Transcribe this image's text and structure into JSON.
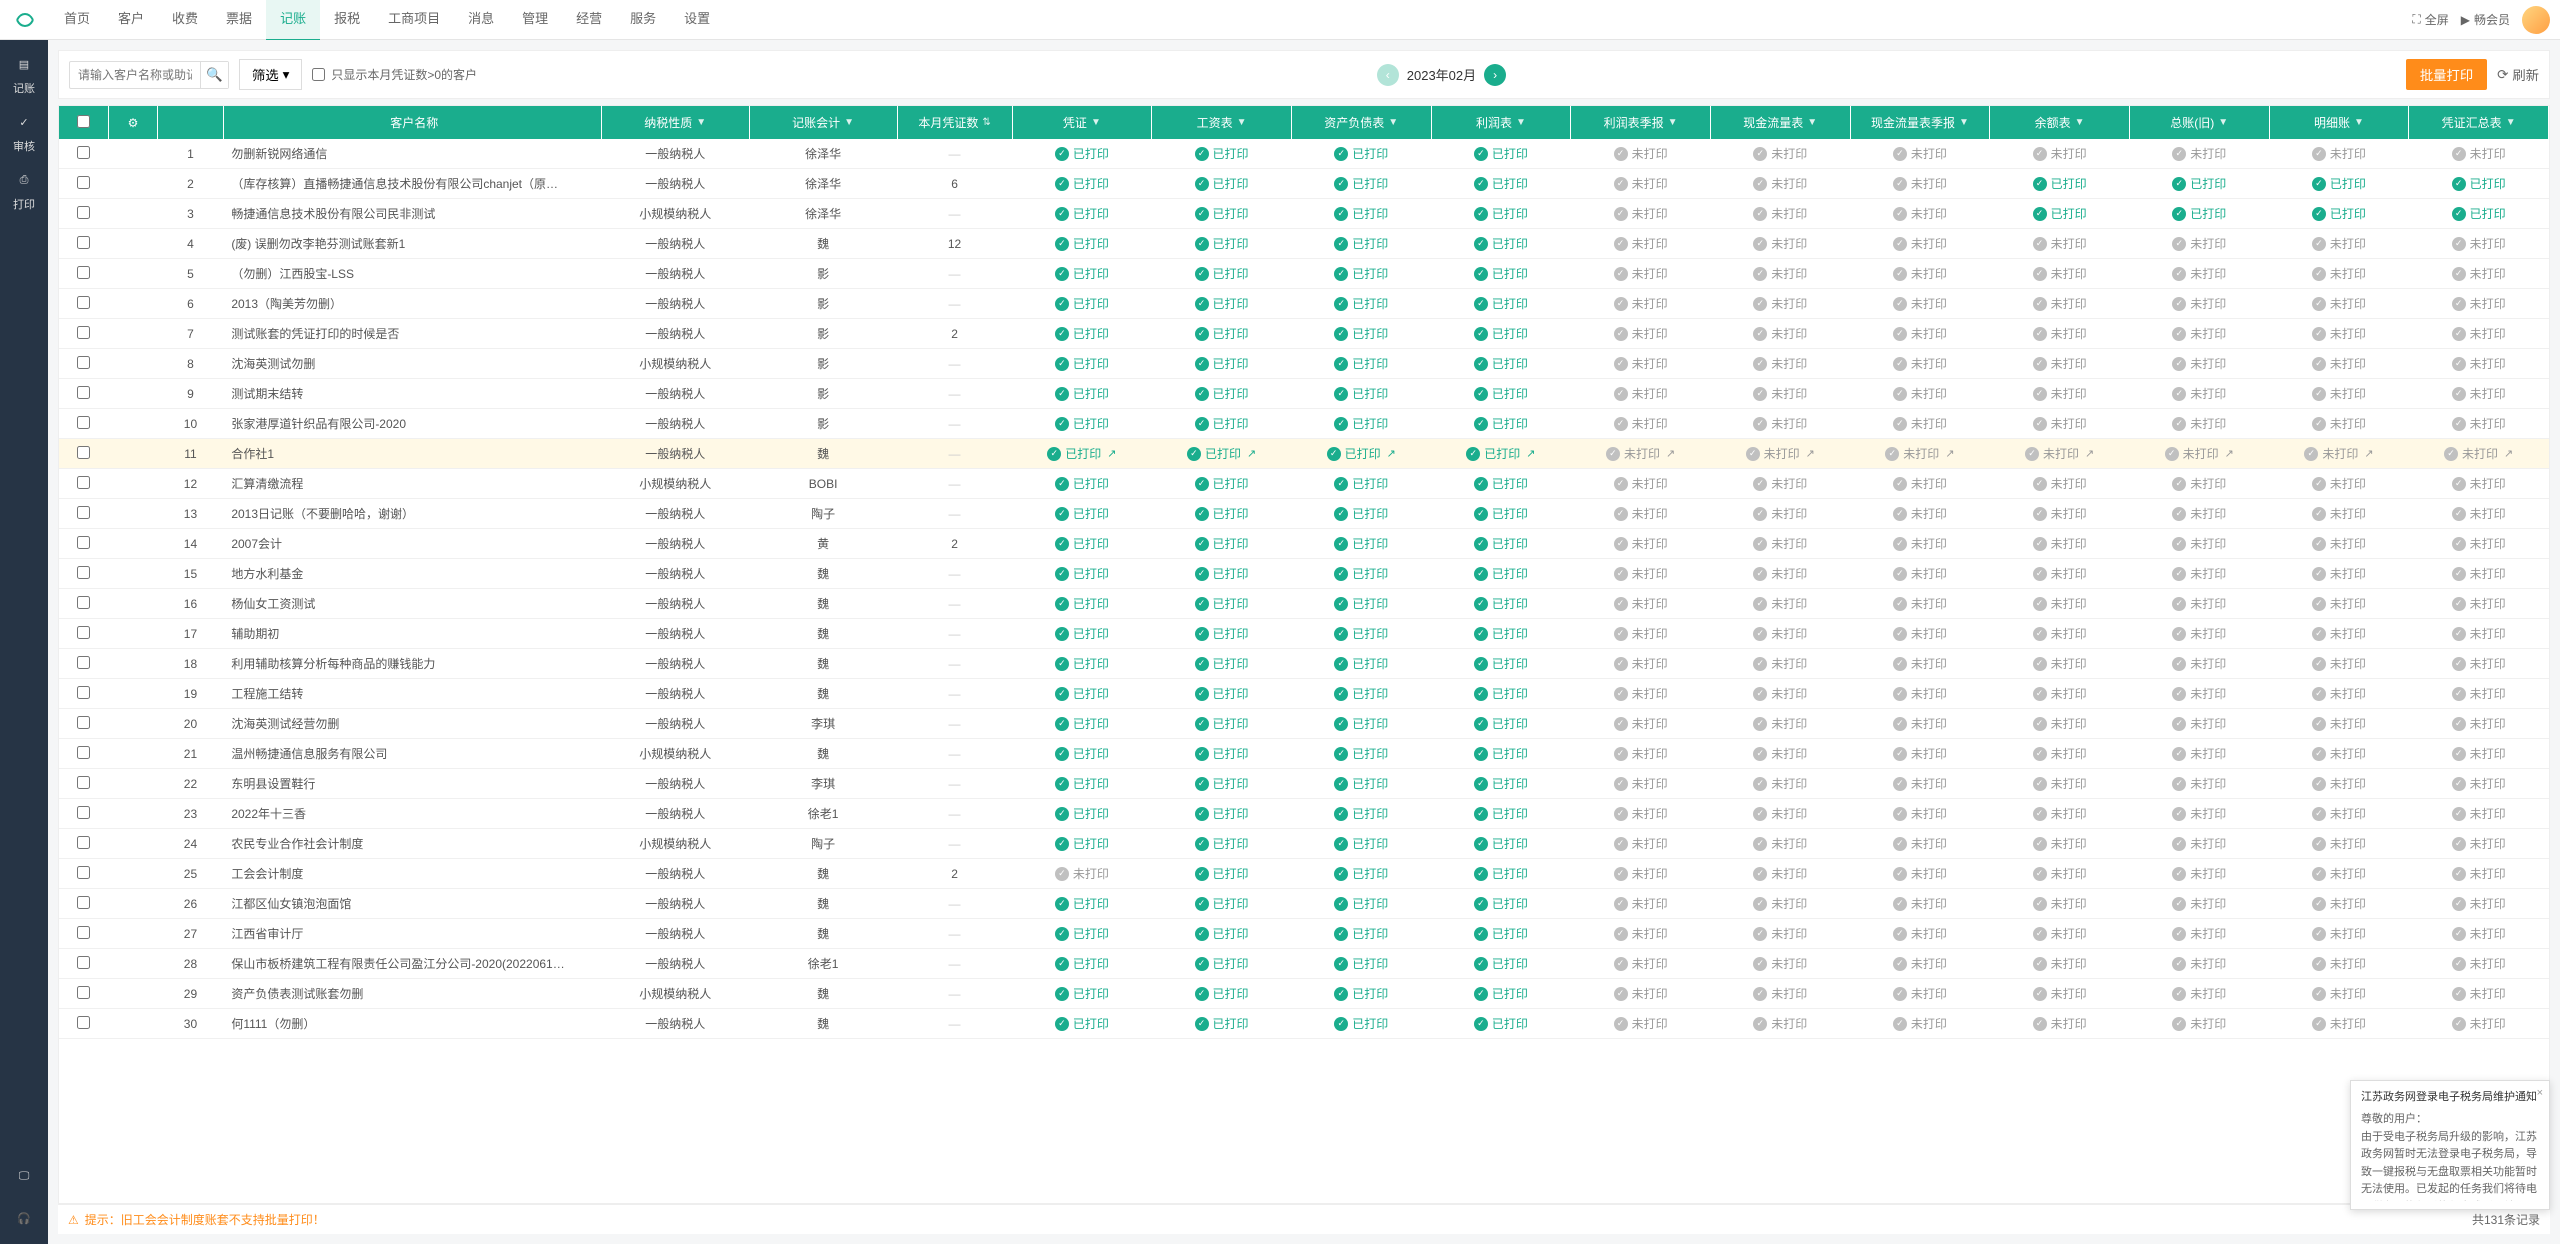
{
  "topnav": {
    "items": [
      "首页",
      "客户",
      "收费",
      "票据",
      "记账",
      "报税",
      "工商项目",
      "消息",
      "管理",
      "经营",
      "服务",
      "设置"
    ],
    "active_index": 4,
    "fullscreen": "全屏",
    "member": "畅会员"
  },
  "sidebar": {
    "items": [
      {
        "label": "记账",
        "icon": "book"
      },
      {
        "label": "审核",
        "icon": "check"
      },
      {
        "label": "打印",
        "icon": "printer"
      }
    ],
    "bottom": [
      {
        "label": "",
        "icon": "monitor"
      },
      {
        "label": "",
        "icon": "headset"
      }
    ]
  },
  "toolbar": {
    "search_placeholder": "请输入客户名称或助记码",
    "filter_label": "筛选",
    "only_show_label": "只显示本月凭证数>0的客户",
    "month": "2023年02月",
    "batch_print": "批量打印",
    "refresh": "刷新"
  },
  "table": {
    "headers": [
      "",
      "",
      "",
      "客户名称",
      "纳税性质",
      "记账会计",
      "本月凭证数",
      "凭证",
      "工资表",
      "资产负债表",
      "利润表",
      "利润表季报",
      "现金流量表",
      "现金流量表季报",
      "余额表",
      "总账(旧)",
      "明细账",
      "凭证汇总表"
    ],
    "col_keys": [
      "chk",
      "gear",
      "idx",
      "name",
      "tax",
      "acct",
      "vcnt",
      "c0",
      "c1",
      "c2",
      "c3",
      "c4",
      "c5",
      "c6",
      "c7",
      "c8",
      "c9",
      "c10"
    ],
    "print_cols": 11,
    "status_printed": "已打印",
    "status_unprinted": "未打印",
    "rows": [
      {
        "idx": 1,
        "name": "勿删新锐网络通信",
        "tax": "一般纳税人",
        "acct": "徐泽华",
        "vcnt": "",
        "p": [
          1,
          1,
          1,
          1,
          0,
          0,
          0,
          0,
          0,
          0,
          0
        ]
      },
      {
        "idx": 2,
        "name": "（库存核算）直播畅捷通信息技术股份有限公司chanjet（原…",
        "tax": "一般纳税人",
        "acct": "徐泽华",
        "vcnt": "6",
        "p": [
          1,
          1,
          1,
          1,
          0,
          0,
          0,
          1,
          1,
          1,
          1
        ]
      },
      {
        "idx": 3,
        "name": "畅捷通信息技术股份有限公司民非测试",
        "tax": "小规模纳税人",
        "acct": "徐泽华",
        "vcnt": "",
        "p": [
          1,
          1,
          1,
          1,
          0,
          0,
          0,
          1,
          1,
          1,
          1
        ]
      },
      {
        "idx": 4,
        "name": "(废) 误删勿改李艳芬测试账套新1",
        "tax": "一般纳税人",
        "acct": "魏",
        "vcnt": "12",
        "p": [
          1,
          1,
          1,
          1,
          0,
          0,
          0,
          0,
          0,
          0,
          0
        ]
      },
      {
        "idx": 5,
        "name": "（勿删）江西股宝-LSS",
        "tax": "一般纳税人",
        "acct": "影",
        "vcnt": "",
        "p": [
          1,
          1,
          1,
          1,
          0,
          0,
          0,
          0,
          0,
          0,
          0
        ]
      },
      {
        "idx": 6,
        "name": "2013（陶美芳勿删）",
        "tax": "一般纳税人",
        "acct": "影",
        "vcnt": "",
        "p": [
          1,
          1,
          1,
          1,
          0,
          0,
          0,
          0,
          0,
          0,
          0
        ]
      },
      {
        "idx": 7,
        "name": "测试账套的凭证打印的时候是否",
        "tax": "一般纳税人",
        "acct": "影",
        "vcnt": "2",
        "p": [
          1,
          1,
          1,
          1,
          0,
          0,
          0,
          0,
          0,
          0,
          0
        ]
      },
      {
        "idx": 8,
        "name": "沈海英测试勿删",
        "tax": "小规模纳税人",
        "acct": "影",
        "vcnt": "",
        "p": [
          1,
          1,
          1,
          1,
          0,
          0,
          0,
          0,
          0,
          0,
          0
        ]
      },
      {
        "idx": 9,
        "name": "测试期末结转",
        "tax": "一般纳税人",
        "acct": "影",
        "vcnt": "",
        "p": [
          1,
          1,
          1,
          1,
          0,
          0,
          0,
          0,
          0,
          0,
          0
        ]
      },
      {
        "idx": 10,
        "name": "张家港厚道针织品有限公司-2020",
        "tax": "一般纳税人",
        "acct": "影",
        "vcnt": "",
        "p": [
          1,
          1,
          1,
          1,
          0,
          0,
          0,
          0,
          0,
          0,
          0
        ]
      },
      {
        "idx": 11,
        "name": "合作社1",
        "tax": "一般纳税人",
        "acct": "魏",
        "vcnt": "",
        "p": [
          1,
          1,
          1,
          1,
          0,
          0,
          0,
          0,
          0,
          0,
          0
        ],
        "hl": true,
        "ext": true
      },
      {
        "idx": 12,
        "name": "汇算清缴流程",
        "tax": "小规模纳税人",
        "acct": "BOBI",
        "vcnt": "",
        "p": [
          1,
          1,
          1,
          1,
          0,
          0,
          0,
          0,
          0,
          0,
          0
        ]
      },
      {
        "idx": 13,
        "name": "2013日记账（不要删哈哈，谢谢）",
        "tax": "一般纳税人",
        "acct": "陶子",
        "vcnt": "",
        "p": [
          1,
          1,
          1,
          1,
          0,
          0,
          0,
          0,
          0,
          0,
          0
        ]
      },
      {
        "idx": 14,
        "name": "2007会计",
        "tax": "一般纳税人",
        "acct": "黄",
        "vcnt": "2",
        "p": [
          1,
          1,
          1,
          1,
          0,
          0,
          0,
          0,
          0,
          0,
          0
        ]
      },
      {
        "idx": 15,
        "name": "地方水利基金",
        "tax": "一般纳税人",
        "acct": "魏",
        "vcnt": "",
        "p": [
          1,
          1,
          1,
          1,
          0,
          0,
          0,
          0,
          0,
          0,
          0
        ]
      },
      {
        "idx": 16,
        "name": "杨仙女工资测试",
        "tax": "一般纳税人",
        "acct": "魏",
        "vcnt": "",
        "p": [
          1,
          1,
          1,
          1,
          0,
          0,
          0,
          0,
          0,
          0,
          0
        ]
      },
      {
        "idx": 17,
        "name": "辅助期初",
        "tax": "一般纳税人",
        "acct": "魏",
        "vcnt": "",
        "p": [
          1,
          1,
          1,
          1,
          0,
          0,
          0,
          0,
          0,
          0,
          0
        ]
      },
      {
        "idx": 18,
        "name": "利用辅助核算分析每种商品的赚钱能力",
        "tax": "一般纳税人",
        "acct": "魏",
        "vcnt": "",
        "p": [
          1,
          1,
          1,
          1,
          0,
          0,
          0,
          0,
          0,
          0,
          0
        ]
      },
      {
        "idx": 19,
        "name": "工程施工结转",
        "tax": "一般纳税人",
        "acct": "魏",
        "vcnt": "",
        "p": [
          1,
          1,
          1,
          1,
          0,
          0,
          0,
          0,
          0,
          0,
          0
        ]
      },
      {
        "idx": 20,
        "name": "沈海英测试经营勿删",
        "tax": "一般纳税人",
        "acct": "李琪",
        "vcnt": "",
        "p": [
          1,
          1,
          1,
          1,
          0,
          0,
          0,
          0,
          0,
          0,
          0
        ]
      },
      {
        "idx": 21,
        "name": "温州畅捷通信息服务有限公司",
        "tax": "小规模纳税人",
        "acct": "魏",
        "vcnt": "",
        "p": [
          1,
          1,
          1,
          1,
          0,
          0,
          0,
          0,
          0,
          0,
          0
        ]
      },
      {
        "idx": 22,
        "name": "东明县设置鞋行",
        "tax": "一般纳税人",
        "acct": "李琪",
        "vcnt": "",
        "p": [
          1,
          1,
          1,
          1,
          0,
          0,
          0,
          0,
          0,
          0,
          0
        ]
      },
      {
        "idx": 23,
        "name": "2022年十三香",
        "tax": "一般纳税人",
        "acct": "徐老1",
        "vcnt": "",
        "p": [
          1,
          1,
          1,
          1,
          0,
          0,
          0,
          0,
          0,
          0,
          0
        ]
      },
      {
        "idx": 24,
        "name": "农民专业合作社会计制度",
        "tax": "小规模纳税人",
        "acct": "陶子",
        "vcnt": "",
        "p": [
          1,
          1,
          1,
          1,
          0,
          0,
          0,
          0,
          0,
          0,
          0
        ]
      },
      {
        "idx": 25,
        "name": "工会会计制度",
        "tax": "一般纳税人",
        "acct": "魏",
        "vcnt": "2",
        "p": [
          0,
          1,
          1,
          1,
          0,
          0,
          0,
          0,
          0,
          0,
          0
        ]
      },
      {
        "idx": 26,
        "name": "江都区仙女镇泡泡面馆",
        "tax": "一般纳税人",
        "acct": "魏",
        "vcnt": "",
        "p": [
          1,
          1,
          1,
          1,
          0,
          0,
          0,
          0,
          0,
          0,
          0
        ]
      },
      {
        "idx": 27,
        "name": "江西省审计厅",
        "tax": "一般纳税人",
        "acct": "魏",
        "vcnt": "",
        "p": [
          1,
          1,
          1,
          1,
          0,
          0,
          0,
          0,
          0,
          0,
          0
        ]
      },
      {
        "idx": 28,
        "name": "保山市板桥建筑工程有限责任公司盈江分公司-2020(2022061…",
        "tax": "一般纳税人",
        "acct": "徐老1",
        "vcnt": "",
        "p": [
          1,
          1,
          1,
          1,
          0,
          0,
          0,
          0,
          0,
          0,
          0
        ]
      },
      {
        "idx": 29,
        "name": "资产负债表测试账套勿删",
        "tax": "小规模纳税人",
        "acct": "魏",
        "vcnt": "",
        "p": [
          1,
          1,
          1,
          1,
          0,
          0,
          0,
          0,
          0,
          0,
          0
        ]
      },
      {
        "idx": 30,
        "name": "何1111（勿删）",
        "tax": "一般纳税人",
        "acct": "魏",
        "vcnt": "",
        "p": [
          1,
          1,
          1,
          1,
          0,
          0,
          0,
          0,
          0,
          0,
          0
        ]
      }
    ]
  },
  "footer": {
    "tip": "提示：旧工会会计制度账套不支持批量打印！",
    "count": "共131条记录"
  },
  "notice": {
    "title": "江苏政务网登录电子税务局维护通知",
    "greeting": "尊敬的用户：",
    "body": "由于受电子税务局升级的影响，江苏政务网暂时无法登录电子税务局，导致一键报税与无盘取票相关功能暂时无法使用。已发起的任务我们将待电子税务局恢复后执行完成返回结果；我们已联系政务网相关运维正在加紧修复，恢复时间将另行通知。"
  },
  "colors": {
    "primary": "#1aad8d",
    "accent": "#ff8c1a",
    "sidebar_bg": "#263445",
    "highlight_row": "#fff9e6"
  }
}
